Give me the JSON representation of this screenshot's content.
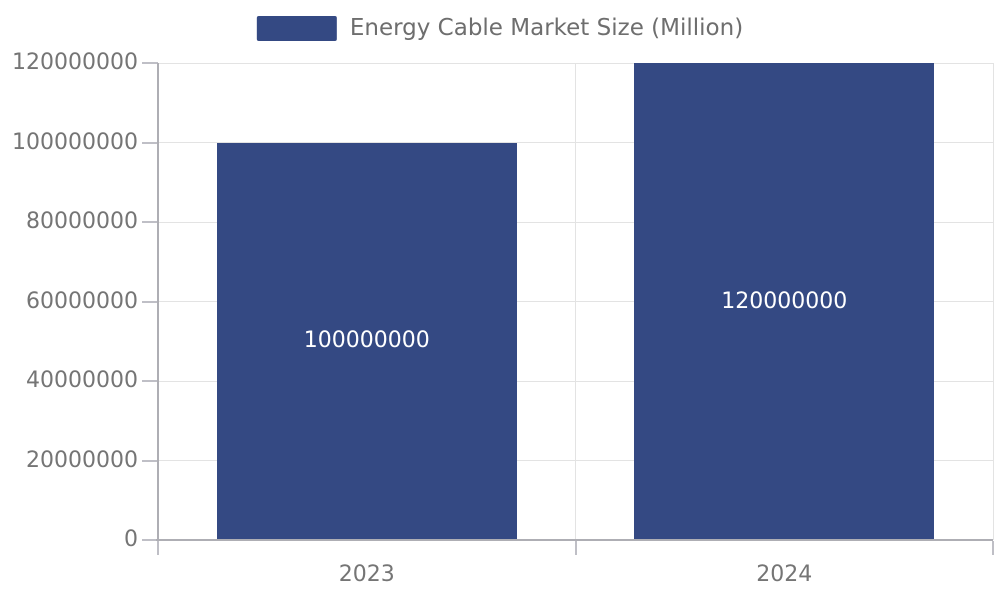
{
  "legend": {
    "label": "Energy Cable Market Size (Million)"
  },
  "colors": {
    "bar": "#344983",
    "grid": "#e3e3e3",
    "axis": "#aeaeb4",
    "tick": "#bfbfc6",
    "tick_label": "#757575",
    "legend_text": "#6e6e6e",
    "value_label": "#ffffff",
    "background": "#ffffff"
  },
  "chart_data": {
    "type": "bar",
    "title": "Energy Cable Market Size (Million)",
    "series_name": "Energy Cable Market Size (Million)",
    "categories": [
      "2023",
      "2024"
    ],
    "values": [
      100000000,
      120000000
    ],
    "value_labels": [
      "100000000",
      "120000000"
    ],
    "xlabel": "",
    "ylabel": "",
    "ylim": [
      0,
      120000000
    ],
    "yticks": [
      0,
      20000000,
      40000000,
      60000000,
      80000000,
      100000000,
      120000000
    ],
    "ytick_labels": [
      "0",
      "20000000",
      "40000000",
      "60000000",
      "80000000",
      "100000000",
      "120000000"
    ],
    "grid": true,
    "legend_position": "top-center"
  }
}
